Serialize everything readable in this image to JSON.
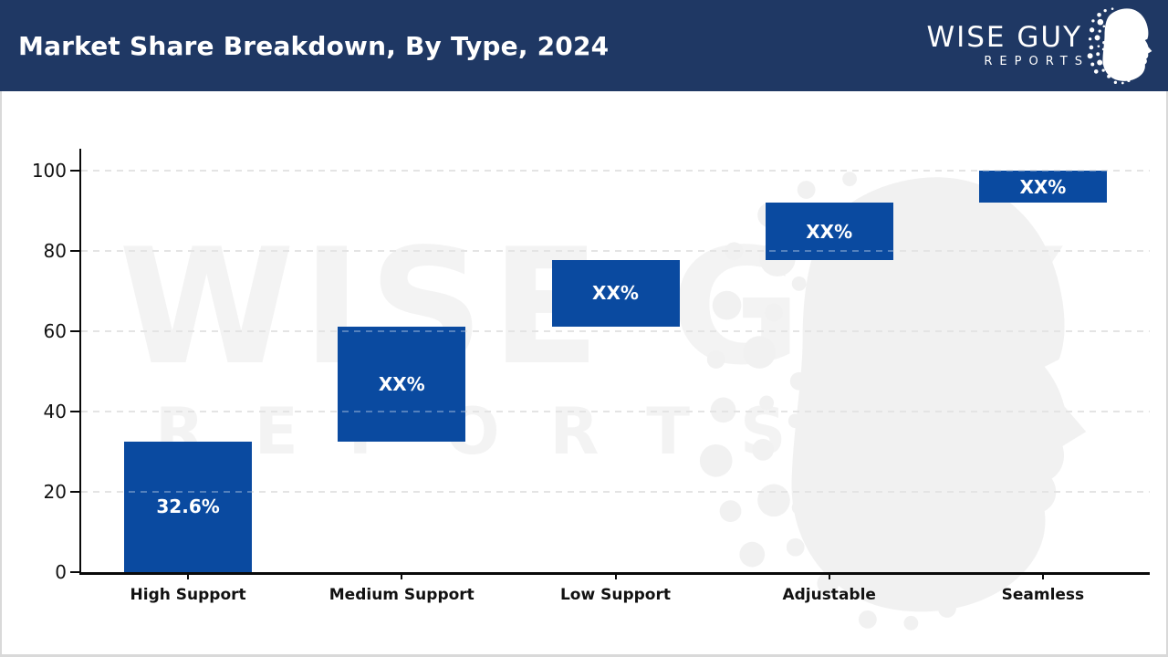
{
  "header": {
    "title": "Market Share Breakdown, By Type, 2024",
    "brand_line1": "WISE GUY",
    "brand_line2": "REPORTS"
  },
  "watermark": {
    "line1": "WISE GUY",
    "line2": "REPORTS"
  },
  "colors": {
    "header_bg": "#1f3864",
    "bar": "#0a4aa0",
    "bar_label": "#ffffff",
    "grid": "#d9d9d9",
    "axis": "#0a0a0a",
    "tick_label": "#111111",
    "watermark": "#f3f3f3",
    "body_border": "#d9d9d9"
  },
  "chart_data": {
    "type": "bar",
    "subtype": "floating-waterfall",
    "title": "Market Share Breakdown, By Type, 2024",
    "xlabel": "",
    "ylabel": "",
    "categories": [
      "High Support",
      "Medium Support",
      "Low Support",
      "Adjustable",
      "Seamless"
    ],
    "segments": [
      {
        "category": "High Support",
        "start": 0,
        "end": 32.6,
        "label": "32.6%"
      },
      {
        "category": "Medium Support",
        "start": 32.6,
        "end": 61.2,
        "label": "XX%"
      },
      {
        "category": "Low Support",
        "start": 61.2,
        "end": 77.7,
        "label": "XX%"
      },
      {
        "category": "Adjustable",
        "start": 77.7,
        "end": 92.0,
        "label": "XX%"
      },
      {
        "category": "Seamless",
        "start": 92.0,
        "end": 100.0,
        "label": "XX%"
      }
    ],
    "yticks": [
      0,
      20,
      40,
      60,
      80,
      100
    ],
    "ylim": [
      0,
      105.5
    ],
    "grid": "horizontal-dashed",
    "legend": "none"
  }
}
